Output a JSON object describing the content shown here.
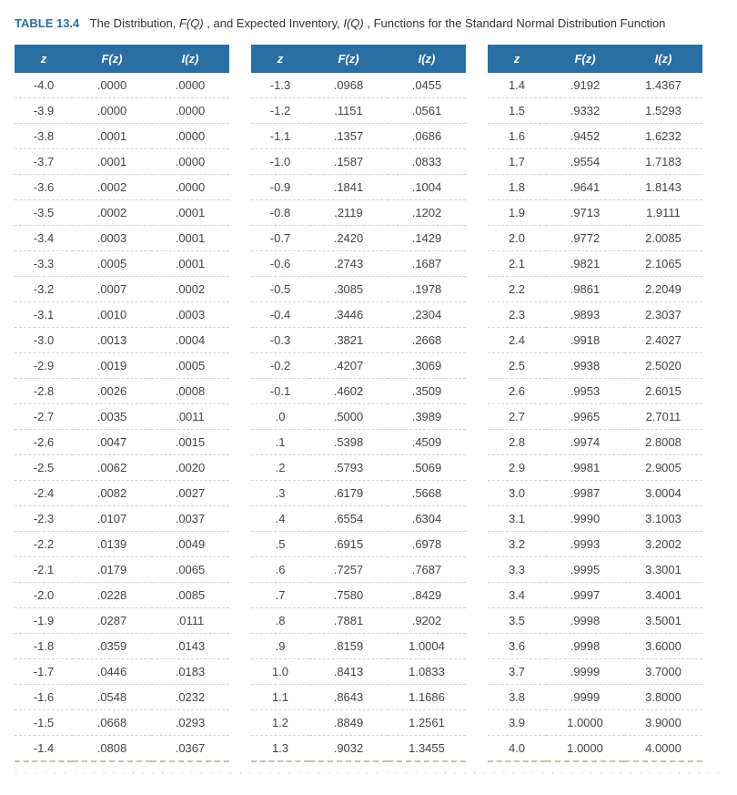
{
  "caption": {
    "label": "TABLE 13.4",
    "text_before": "The Distribution, ",
    "fq": "F(Q)",
    "text_mid1": ", and Expected Inventory, ",
    "iq": "I(Q)",
    "text_mid2": ", Functions for the Standard Normal Distribution Function"
  },
  "headers": {
    "z": "z",
    "fz": "F(z)",
    "iz": "I(z)"
  },
  "colors": {
    "header_bg": "#2a6fa3",
    "header_fg": "#ffffff",
    "row_border": "#d9d2c4",
    "page_bg": "#ffffff",
    "caption_label": "#2a6fa3"
  },
  "columns": [
    {
      "rows": [
        {
          "z": "-4.0",
          "fz": ".0000",
          "iz": ".0000"
        },
        {
          "z": "-3.9",
          "fz": ".0000",
          "iz": ".0000"
        },
        {
          "z": "-3.8",
          "fz": ".0001",
          "iz": ".0000"
        },
        {
          "z": "-3.7",
          "fz": ".0001",
          "iz": ".0000"
        },
        {
          "z": "-3.6",
          "fz": ".0002",
          "iz": ".0000"
        },
        {
          "z": "-3.5",
          "fz": ".0002",
          "iz": ".0001"
        },
        {
          "z": "-3.4",
          "fz": ".0003",
          "iz": ".0001"
        },
        {
          "z": "-3.3",
          "fz": ".0005",
          "iz": ".0001"
        },
        {
          "z": "-3.2",
          "fz": ".0007",
          "iz": ".0002"
        },
        {
          "z": "-3.1",
          "fz": ".0010",
          "iz": ".0003"
        },
        {
          "z": "-3.0",
          "fz": ".0013",
          "iz": ".0004"
        },
        {
          "z": "-2.9",
          "fz": ".0019",
          "iz": ".0005"
        },
        {
          "z": "-2.8",
          "fz": ".0026",
          "iz": ".0008"
        },
        {
          "z": "-2.7",
          "fz": ".0035",
          "iz": ".0011"
        },
        {
          "z": "-2.6",
          "fz": ".0047",
          "iz": ".0015"
        },
        {
          "z": "-2.5",
          "fz": ".0062",
          "iz": ".0020"
        },
        {
          "z": "-2.4",
          "fz": ".0082",
          "iz": ".0027"
        },
        {
          "z": "-2.3",
          "fz": ".0107",
          "iz": ".0037"
        },
        {
          "z": "-2.2",
          "fz": ".0139",
          "iz": ".0049"
        },
        {
          "z": "-2.1",
          "fz": ".0179",
          "iz": ".0065"
        },
        {
          "z": "-2.0",
          "fz": ".0228",
          "iz": ".0085"
        },
        {
          "z": "-1.9",
          "fz": ".0287",
          "iz": ".0111"
        },
        {
          "z": "-1.8",
          "fz": ".0359",
          "iz": ".0143"
        },
        {
          "z": "-1.7",
          "fz": ".0446",
          "iz": ".0183"
        },
        {
          "z": "-1.6",
          "fz": ".0548",
          "iz": ".0232"
        },
        {
          "z": "-1.5",
          "fz": ".0668",
          "iz": ".0293"
        },
        {
          "z": "-1.4",
          "fz": ".0808",
          "iz": ".0367"
        }
      ]
    },
    {
      "rows": [
        {
          "z": "-1.3",
          "fz": ".0968",
          "iz": ".0455"
        },
        {
          "z": "-1.2",
          "fz": ".1151",
          "iz": ".0561"
        },
        {
          "z": "-1.1",
          "fz": ".1357",
          "iz": ".0686"
        },
        {
          "z": "-1.0",
          "fz": ".1587",
          "iz": ".0833"
        },
        {
          "z": "-0.9",
          "fz": ".1841",
          "iz": ".1004"
        },
        {
          "z": "-0.8",
          "fz": ".2119",
          "iz": ".1202"
        },
        {
          "z": "-0.7",
          "fz": ".2420",
          "iz": ".1429"
        },
        {
          "z": "-0.6",
          "fz": ".2743",
          "iz": ".1687"
        },
        {
          "z": "-0.5",
          "fz": ".3085",
          "iz": ".1978"
        },
        {
          "z": "-0.4",
          "fz": ".3446",
          "iz": ".2304"
        },
        {
          "z": "-0.3",
          "fz": ".3821",
          "iz": ".2668"
        },
        {
          "z": "-0.2",
          "fz": ".4207",
          "iz": ".3069"
        },
        {
          "z": "-0.1",
          "fz": ".4602",
          "iz": ".3509"
        },
        {
          "z": ".0",
          "fz": ".5000",
          "iz": ".3989"
        },
        {
          "z": ".1",
          "fz": ".5398",
          "iz": ".4509"
        },
        {
          "z": ".2",
          "fz": ".5793",
          "iz": ".5069"
        },
        {
          "z": ".3",
          "fz": ".6179",
          "iz": ".5668"
        },
        {
          "z": ".4",
          "fz": ".6554",
          "iz": ".6304"
        },
        {
          "z": ".5",
          "fz": ".6915",
          "iz": ".6978"
        },
        {
          "z": ".6",
          "fz": ".7257",
          "iz": ".7687"
        },
        {
          "z": ".7",
          "fz": ".7580",
          "iz": ".8429"
        },
        {
          "z": ".8",
          "fz": ".7881",
          "iz": ".9202"
        },
        {
          "z": ".9",
          "fz": ".8159",
          "iz": "1.0004"
        },
        {
          "z": "1.0",
          "fz": ".8413",
          "iz": "1.0833"
        },
        {
          "z": "1.1",
          "fz": ".8643",
          "iz": "1.1686"
        },
        {
          "z": "1.2",
          "fz": ".8849",
          "iz": "1.2561"
        },
        {
          "z": "1.3",
          "fz": ".9032",
          "iz": "1.3455"
        }
      ]
    },
    {
      "rows": [
        {
          "z": "1.4",
          "fz": ".9192",
          "iz": "1.4367"
        },
        {
          "z": "1.5",
          "fz": ".9332",
          "iz": "1.5293"
        },
        {
          "z": "1.6",
          "fz": ".9452",
          "iz": "1.6232"
        },
        {
          "z": "1.7",
          "fz": ".9554",
          "iz": "1.7183"
        },
        {
          "z": "1.8",
          "fz": ".9641",
          "iz": "1.8143"
        },
        {
          "z": "1.9",
          "fz": ".9713",
          "iz": "1.9111"
        },
        {
          "z": "2.0",
          "fz": ".9772",
          "iz": "2.0085"
        },
        {
          "z": "2.1",
          "fz": ".9821",
          "iz": "2.1065"
        },
        {
          "z": "2.2",
          "fz": ".9861",
          "iz": "2.2049"
        },
        {
          "z": "2.3",
          "fz": ".9893",
          "iz": "2.3037"
        },
        {
          "z": "2.4",
          "fz": ".9918",
          "iz": "2.4027"
        },
        {
          "z": "2.5",
          "fz": ".9938",
          "iz": "2.5020"
        },
        {
          "z": "2.6",
          "fz": ".9953",
          "iz": "2.6015"
        },
        {
          "z": "2.7",
          "fz": ".9965",
          "iz": "2.7011"
        },
        {
          "z": "2.8",
          "fz": ".9974",
          "iz": "2.8008"
        },
        {
          "z": "2.9",
          "fz": ".9981",
          "iz": "2.9005"
        },
        {
          "z": "3.0",
          "fz": ".9987",
          "iz": "3.0004"
        },
        {
          "z": "3.1",
          "fz": ".9990",
          "iz": "3.1003"
        },
        {
          "z": "3.2",
          "fz": ".9993",
          "iz": "3.2002"
        },
        {
          "z": "3.3",
          "fz": ".9995",
          "iz": "3.3001"
        },
        {
          "z": "3.4",
          "fz": ".9997",
          "iz": "3.4001"
        },
        {
          "z": "3.5",
          "fz": ".9998",
          "iz": "3.5001"
        },
        {
          "z": "3.6",
          "fz": ".9998",
          "iz": "3.6000"
        },
        {
          "z": "3.7",
          "fz": ".9999",
          "iz": "3.7000"
        },
        {
          "z": "3.8",
          "fz": ".9999",
          "iz": "3.8000"
        },
        {
          "z": "3.9",
          "fz": "1.0000",
          "iz": "3.9000"
        },
        {
          "z": "4.0",
          "fz": "1.0000",
          "iz": "4.0000"
        }
      ]
    }
  ]
}
